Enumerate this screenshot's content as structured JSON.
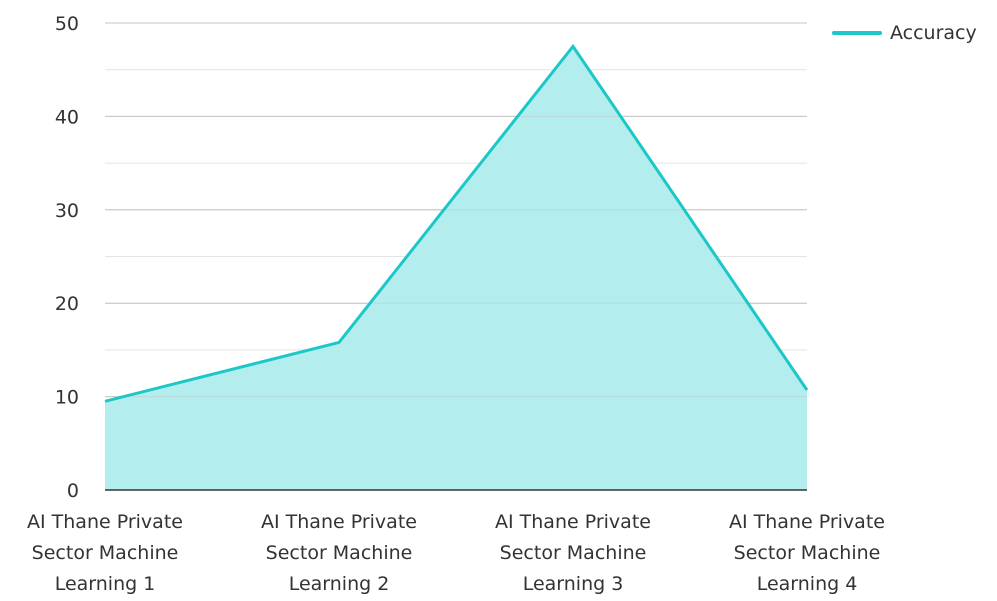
{
  "chart_data": {
    "type": "area",
    "categories": [
      [
        "AI Thane Private",
        "Sector Machine",
        "Learning 1"
      ],
      [
        "AI Thane Private",
        "Sector Machine",
        "Learning 2"
      ],
      [
        "AI Thane Private",
        "Sector Machine",
        "Learning 3"
      ],
      [
        "AI Thane Private",
        "Sector Machine",
        "Learning 4"
      ]
    ],
    "series": [
      {
        "name": "Accuracy",
        "values": [
          9.5,
          15.8,
          47.5,
          10.7
        ]
      }
    ],
    "ylim": [
      0,
      50
    ],
    "yticks": [
      0,
      10,
      20,
      30,
      40,
      50
    ],
    "grid": true,
    "legend_position": "top-right",
    "colors": {
      "line": "#1cc7c7",
      "fill": "#b3eded",
      "grid_major": "#c4c4c4",
      "grid_minor": "#e4e4e4",
      "axis": "#333333"
    }
  }
}
